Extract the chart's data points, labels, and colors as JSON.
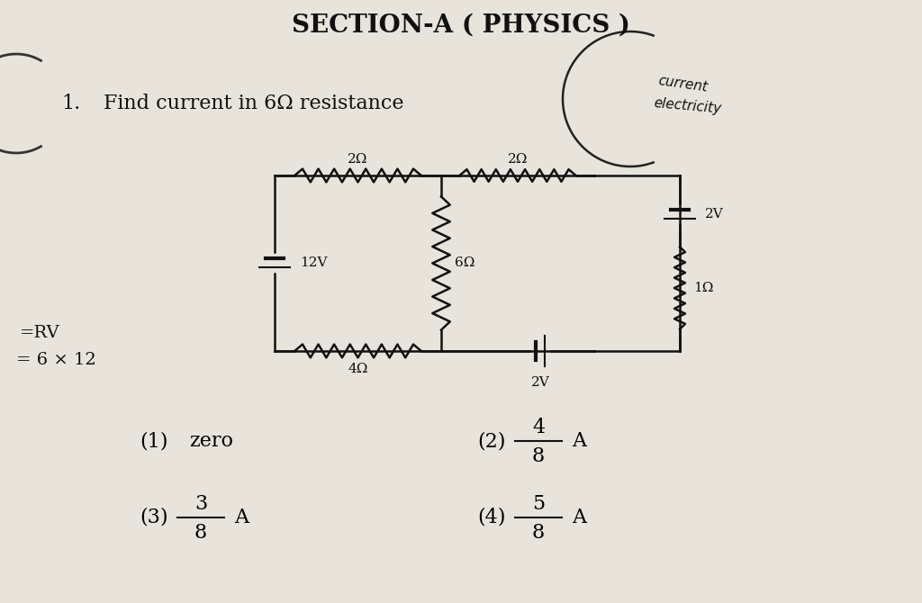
{
  "title": "SECTION-A ( PHYSICS )",
  "bg_color": "#e8e4dc",
  "title_fontsize": 20,
  "q_num": "1.",
  "q_text": "Find current in 6Ω resistance",
  "q_fontsize": 16,
  "side_note1": "=RV",
  "side_note2": "= 6 × 12",
  "side_fontsize": 14,
  "opt1_label": "(1)",
  "opt1_text": "zero",
  "opt2_label": "(2)",
  "opt2_num": "4",
  "opt2_den": "8",
  "opt3_label": "(3)",
  "opt3_num": "3",
  "opt3_den": "8",
  "opt4_label": "(4)",
  "opt4_num": "5",
  "opt4_den": "8",
  "opt_fontsize": 16,
  "circuit_color": "#111111",
  "circuit_lw": 1.8,
  "left_bat_label": "12V",
  "top_r1_label": "2Ω",
  "top_r2_label": "2Ω",
  "mid_r_label": "6Ω",
  "bot_r_label": "4Ω",
  "right_bat_label": "2V",
  "right_r_label": "1Ω",
  "bot_bat_label": "2V"
}
